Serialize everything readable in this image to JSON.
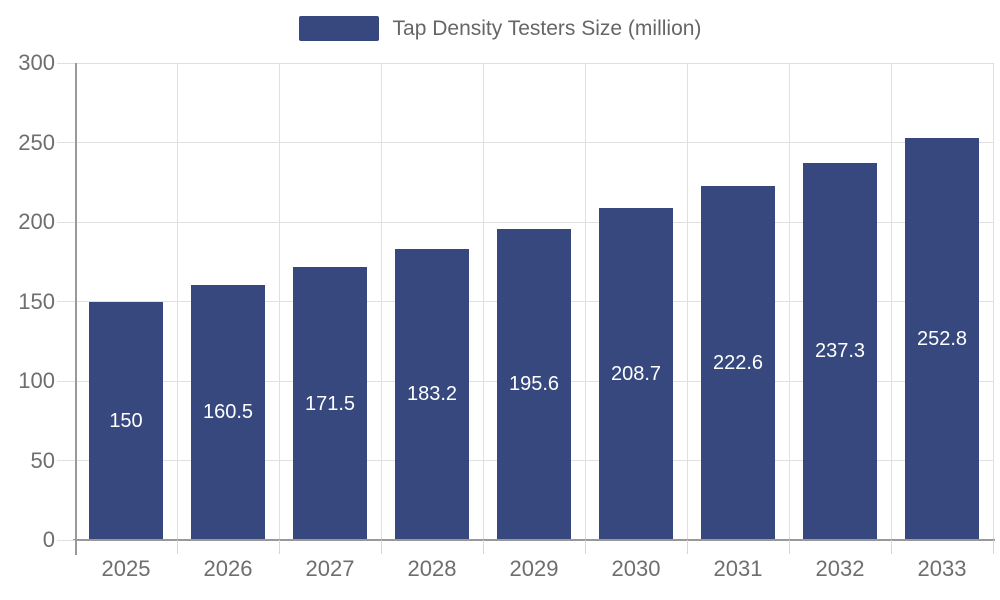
{
  "legend": {
    "label": "Tap Density Testers Size (million)"
  },
  "chart_data": {
    "type": "bar",
    "title": "Tap Density Testers Size (million)",
    "categories": [
      "2025",
      "2026",
      "2027",
      "2028",
      "2029",
      "2030",
      "2031",
      "2032",
      "2033"
    ],
    "values": [
      150,
      160.5,
      171.5,
      183.2,
      195.6,
      208.7,
      222.6,
      237.3,
      252.8
    ],
    "value_labels": [
      "150",
      "160.5",
      "171.5",
      "183.2",
      "195.6",
      "208.7",
      "222.6",
      "237.3",
      "252.8"
    ],
    "xlabel": "",
    "ylabel": "",
    "ylim": [
      0,
      300
    ],
    "y_ticks": [
      0,
      50,
      100,
      150,
      200,
      250,
      300
    ],
    "grid": true,
    "legend_position": "top-center",
    "value_label_position": "inside-center",
    "colors": {
      "bar": "#36487E",
      "bar_label": "#ffffff",
      "axis_text": "#6e6e6e",
      "legend_text": "#666666",
      "axis_line": "#999999",
      "gridline": "#e0e0e0",
      "background": "#ffffff"
    }
  }
}
